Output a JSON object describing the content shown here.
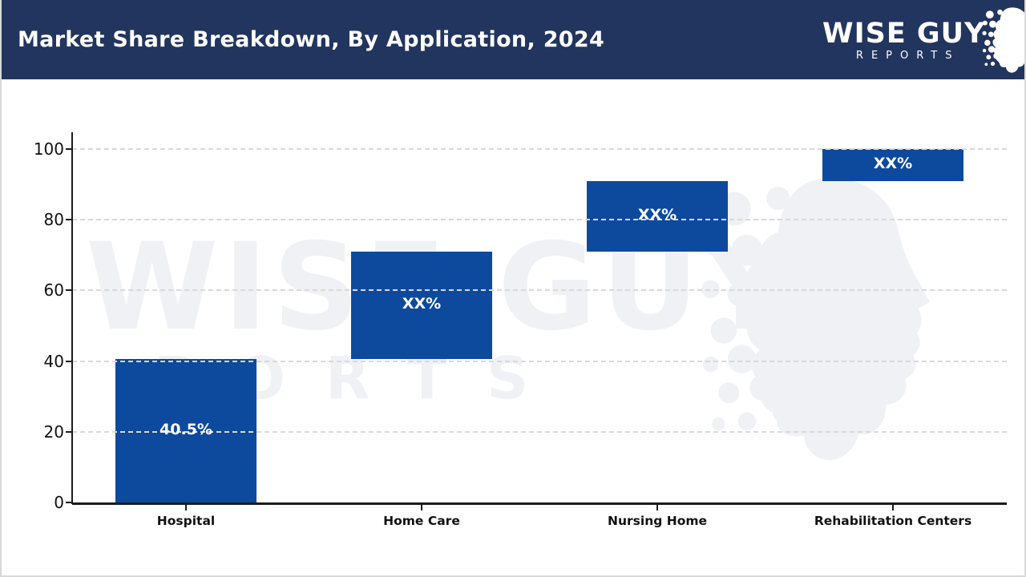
{
  "header": {
    "title": "Market Share Breakdown, By Application, 2024",
    "bg_color": "#22355e",
    "logo": {
      "wordmark": "WISE GUY",
      "subtext": "REPORTS",
      "face_icon": "dotted-face-profile-icon"
    }
  },
  "watermark": {
    "line1": "WISE GUY",
    "line2": "PORTS",
    "face_icon": "dotted-face-profile-watermark",
    "color": "#f0f1f4"
  },
  "chart_data": {
    "type": "bar",
    "variant": "waterfall",
    "title": "Market Share Breakdown, By Application, 2024",
    "categories": [
      "Hospital",
      "Home Care",
      "Nursing Home",
      "Rehabilitation Centers"
    ],
    "segments": [
      {
        "category": "Hospital",
        "start": 0,
        "end": 40.5,
        "label": "40.5%"
      },
      {
        "category": "Home Care",
        "start": 40.5,
        "end": 71,
        "label": "XX%"
      },
      {
        "category": "Nursing Home",
        "start": 71,
        "end": 91,
        "label": "XX%"
      },
      {
        "category": "Rehabilitation Centers",
        "start": 91,
        "end": 100,
        "label": "XX%"
      }
    ],
    "xlabel": "",
    "ylabel": "",
    "yticks": [
      0,
      20,
      40,
      60,
      80,
      100
    ],
    "ylim": [
      0,
      104.5
    ],
    "grid": {
      "axis": "y",
      "style": "dashed",
      "color": "#d9d9d9",
      "above_bars": true
    },
    "bar_color": "#0d4a9e",
    "bar_label_color": "#ffffff",
    "axis_color": "#1b1b1b",
    "legend": null
  }
}
